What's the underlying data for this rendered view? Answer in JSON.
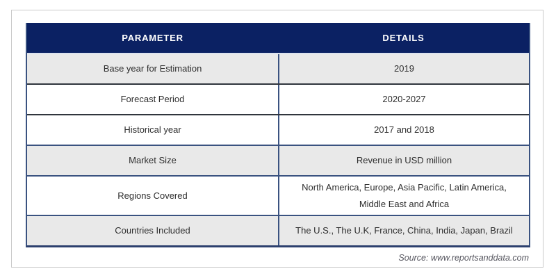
{
  "chart_data": {
    "type": "table",
    "title": "",
    "columns": [
      "PARAMETER",
      "DETAILS"
    ],
    "rows": [
      [
        "Base year for Estimation",
        "2019"
      ],
      [
        "Forecast Period",
        "2020-2027"
      ],
      [
        "Historical year",
        "2017 and 2018"
      ],
      [
        "Market Size",
        "Revenue in USD million"
      ],
      [
        "Regions Covered",
        "North America, Europe, Asia Pacific, Latin America, Middle East and Africa"
      ],
      [
        "Countries Included",
        "The U.S., The  U.K, France, China, India, Japan, Brazil"
      ]
    ],
    "source": "Source: www.reportsanddata.com"
  },
  "palette": {
    "header_bg": "#0b2163",
    "shaded_row_bg": "#e9e9e9",
    "plain_row_bg": "#ffffff",
    "border_navy": "#3a5280",
    "border_dark": "#30353d",
    "header_separator": "#dde3ee",
    "frame_border": "#c9c9c9",
    "body_text": "#2e2e2e",
    "header_text": "#ffffff",
    "source_text": "#55555e"
  }
}
